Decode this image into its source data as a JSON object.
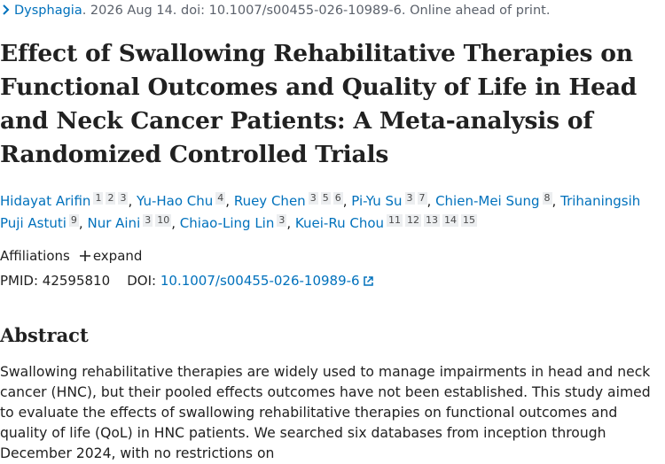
{
  "citation": {
    "journal": "Dysphagia",
    "details": ". 2026 Aug 14. doi: 10.1007/s00455-026-10989-6. Online ahead of print."
  },
  "title": "Effect of Swallowing Rehabilitative Therapies on Functional Outcomes and Quality of Life in Head and Neck Cancer Patients: A Meta-analysis of Randomized Controlled Trials",
  "authors": {
    "separator": ",",
    "list": [
      {
        "name": "Hidayat Arifin",
        "affiliations": [
          1,
          2,
          3
        ]
      },
      {
        "name": "Yu-Hao Chu",
        "affiliations": [
          4
        ]
      },
      {
        "name": "Ruey Chen",
        "affiliations": [
          3,
          5,
          6
        ]
      },
      {
        "name": "Pi-Yu Su",
        "affiliations": [
          3,
          7
        ]
      },
      {
        "name": "Chien-Mei Sung",
        "affiliations": [
          8
        ]
      },
      {
        "name": "Trihaningsih Puji Astuti",
        "affiliations": [
          9
        ]
      },
      {
        "name": "Nur Aini",
        "affiliations": [
          3,
          10
        ]
      },
      {
        "name": "Chiao-Ling Lin",
        "affiliations": [
          3
        ]
      },
      {
        "name": "Kuei-Ru Chou",
        "affiliations": [
          11,
          12,
          13,
          14,
          15
        ]
      }
    ]
  },
  "affiliations": {
    "label": "Affiliations",
    "toggle": "expand"
  },
  "identifiers": {
    "pmid_label": "PMID:",
    "pmid": "42595810",
    "doi_label": "DOI:",
    "doi": "10.1007/s00455-026-10989-6"
  },
  "abstract": {
    "heading": "Abstract",
    "text": "Swallowing rehabilitative therapies are widely used to manage impairments in head and neck cancer (HNC), but their pooled effects outcomes have not been established. This study aimed to evaluate the effects of swallowing rehabilitative therapies on functional outcomes and quality of life (QoL) in HNC patients. We searched six databases from inception through December 2024, with no restrictions on"
  }
}
